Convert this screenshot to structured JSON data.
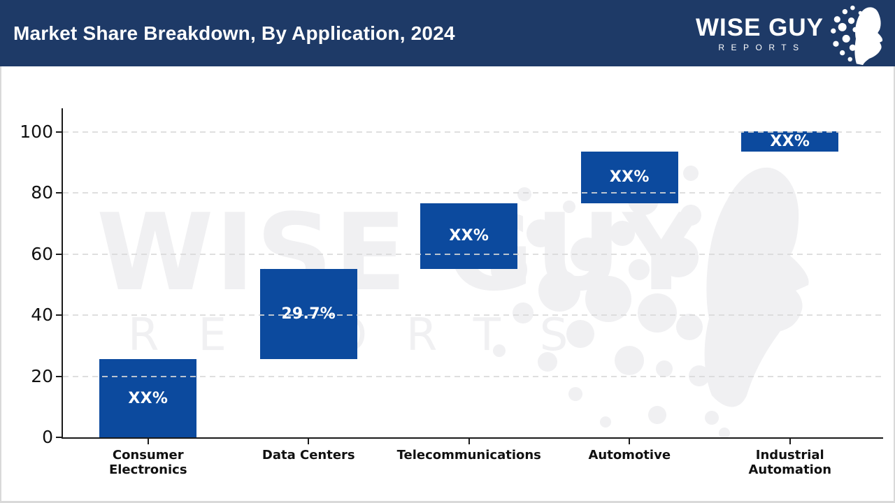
{
  "header": {
    "title": "Market Share Breakdown, By Application, 2024",
    "logo": {
      "name": "WISE GUY",
      "tagline": "REPORTS"
    }
  },
  "watermark": {
    "line1": "WISE GUY",
    "line2": "REPORTS"
  },
  "colors": {
    "header_bg": "#1e3a67",
    "bar": "#0c4a9e",
    "bar_label": "#ffffff",
    "grid": "#d9d9d9",
    "axis": "#1a1a1a",
    "watermark": "#f0f0f2"
  },
  "chart_data": {
    "type": "bar",
    "variant": "waterfall",
    "title": "Market Share Breakdown, By Application, 2024",
    "categories": [
      "Consumer Electronics",
      "Data Centers",
      "Telecommunications",
      "Automotive",
      "Industrial Automation"
    ],
    "tick_lines": [
      [
        "Consumer",
        "Electronics"
      ],
      [
        "Data Centers"
      ],
      [
        "Telecommunications"
      ],
      [
        "Automotive"
      ],
      [
        "Industrial",
        "Automation"
      ]
    ],
    "segments": [
      {
        "category": "Consumer Electronics",
        "start": 0,
        "end": 25.5,
        "label": "XX%"
      },
      {
        "category": "Data Centers",
        "start": 25.5,
        "end": 55.2,
        "label": "29.7%"
      },
      {
        "category": "Telecommunications",
        "start": 55.2,
        "end": 76.6,
        "label": "XX%"
      },
      {
        "category": "Automotive",
        "start": 76.6,
        "end": 93.6,
        "label": "XX%"
      },
      {
        "category": "Industrial Automation",
        "start": 93.6,
        "end": 100.2,
        "label": "XX%"
      }
    ],
    "yticks": [
      0,
      20,
      40,
      60,
      80,
      100
    ],
    "ylim": [
      0,
      105
    ],
    "xlabel": "",
    "ylabel": "",
    "grid": "horizontal-dashed",
    "legend": "none"
  }
}
